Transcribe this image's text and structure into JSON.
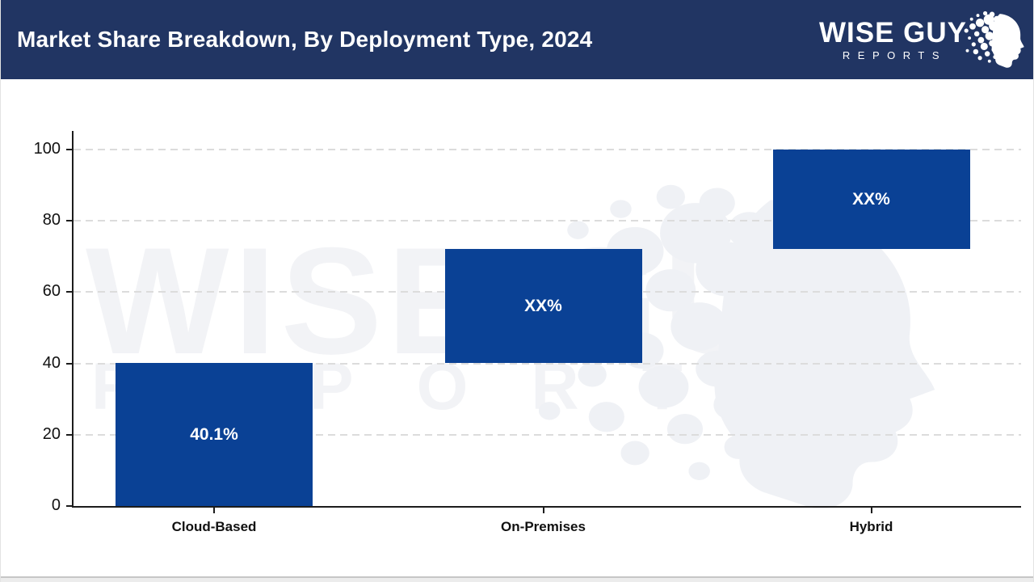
{
  "header": {
    "logo": {
      "line1": "WISE GUY",
      "line2": "REPORTS"
    }
  },
  "chart_data": {
    "type": "bar",
    "subtype": "floating-waterfall",
    "title": "Market Share Breakdown, By Deployment Type, 2024",
    "categories": [
      "Cloud-Based",
      "On-Premises",
      "Hybrid"
    ],
    "bars": [
      {
        "category": "Cloud-Based",
        "start": 0,
        "end": 40.1,
        "label": "40.1%"
      },
      {
        "category": "On-Premises",
        "start": 40.1,
        "end": 72,
        "label": "XX%"
      },
      {
        "category": "Hybrid",
        "start": 72,
        "end": 100,
        "label": "XX%"
      }
    ],
    "ylim": [
      0,
      100
    ],
    "yticks": [
      0,
      20,
      40,
      60,
      80,
      100
    ],
    "xlabel": "",
    "ylabel": "",
    "grid": "horizontal-dashed",
    "legend": "none",
    "bar_color": "#0a4195",
    "bar_label_color": "#ffffff"
  },
  "watermark": {
    "line1": "WISE GUY",
    "line2": "REPORTS"
  },
  "colors": {
    "header_bg": "#213563",
    "header_text": "#ffffff",
    "bar": "#0a4195",
    "grid": "#dcdcdc",
    "axis": "#1c1c1c",
    "tick_text": "#111111",
    "watermark": "#f2f3f6"
  }
}
